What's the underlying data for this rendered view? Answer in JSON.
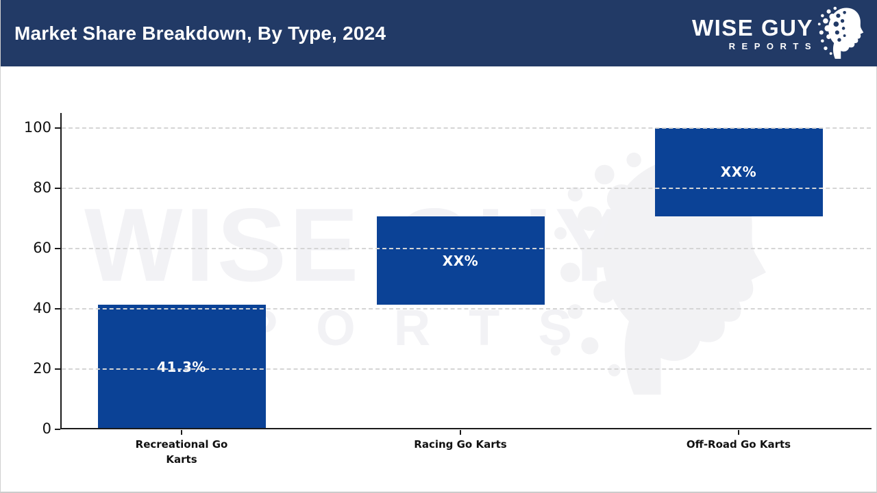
{
  "header": {
    "title": "Market Share Breakdown, By Type, 2024",
    "logo": {
      "name_top": "WISE GUY",
      "name_bottom": "REPORTS"
    }
  },
  "watermark": {
    "line1": "WISE GUY",
    "line2": "REPORTS"
  },
  "chart_data": {
    "type": "bar",
    "variant": "waterfall",
    "title": "Market Share Breakdown, By Type, 2024",
    "categories": [
      "Recreational Go Karts",
      "Racing Go Karts",
      "Off-Road Go Karts"
    ],
    "segments": [
      {
        "category": "Recreational Go Karts",
        "start": 0,
        "end": 41.3,
        "label": "41.3%"
      },
      {
        "category": "Racing Go Karts",
        "start": 41.3,
        "end": 70.7,
        "label": "XX%"
      },
      {
        "category": "Off-Road Go Karts",
        "start": 70.7,
        "end": 100,
        "label": "XX%"
      }
    ],
    "xlabel": "",
    "ylabel": "",
    "ylim": [
      0,
      100
    ],
    "yticks": [
      0,
      20,
      40,
      60,
      80,
      100
    ],
    "grid": "horizontal-dashed",
    "legend": "none",
    "bar_color": "#0b4296",
    "bar_label_color": "#ffffff"
  },
  "colors": {
    "header_bg": "#223a66",
    "bar": "#0b4296",
    "grid": "#d5d5d5",
    "axis": "#1a1a1a",
    "watermark": "#f2f2f5"
  }
}
